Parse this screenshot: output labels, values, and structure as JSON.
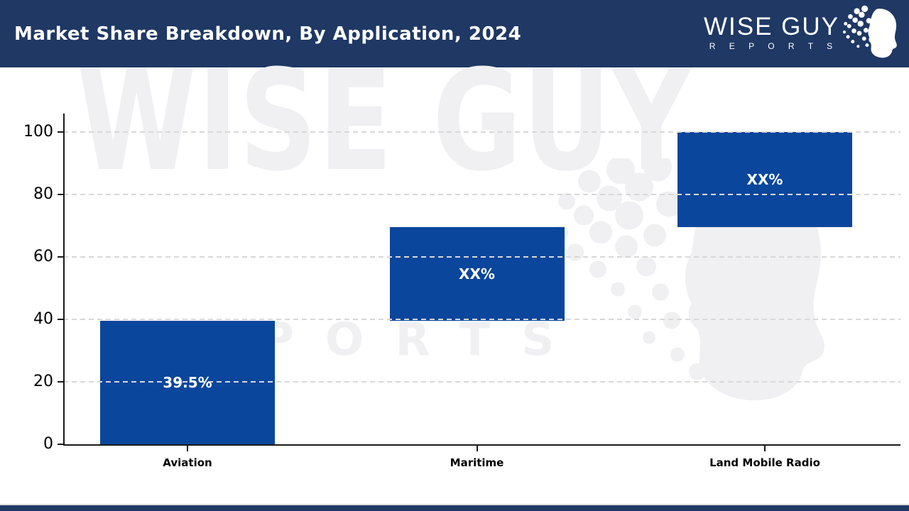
{
  "header": {
    "title": "Market Share Breakdown, By Application, 2024",
    "logo": {
      "line1": "WISE GUY",
      "line2": "R E P O R T S"
    }
  },
  "watermark": {
    "line1": "WISE GUY",
    "line2": "REPORTS"
  },
  "chart_data": {
    "type": "bar",
    "variant": "floating-segment-waterfall",
    "title": "Market Share Breakdown, By Application, 2024",
    "categories": [
      "Aviation",
      "Maritime",
      "Land Mobile Radio"
    ],
    "segments": [
      {
        "category": "Aviation",
        "start": 0,
        "end": 39.5,
        "label": "39.5%"
      },
      {
        "category": "Maritime",
        "start": 39.5,
        "end": 69.5,
        "label": "XX%"
      },
      {
        "category": "Land Mobile Radio",
        "start": 69.5,
        "end": 100,
        "label": "XX%"
      }
    ],
    "yticks": [
      0,
      20,
      40,
      60,
      80,
      100
    ],
    "ylim": [
      0,
      106
    ],
    "xlabel": "",
    "ylabel": "",
    "grid": "horizontal dashed, light gray, drawn over bars",
    "legend": "none",
    "bar_color": "#0a469c",
    "bar_label_color": "#ffffff"
  },
  "colors": {
    "header_bg": "#1f3864",
    "footer_bar": "#1f3864",
    "bar": "#0a469c",
    "gridline": "#d8d8d8",
    "watermark": "#f0f0f2",
    "axis": "#1a1a1a"
  }
}
